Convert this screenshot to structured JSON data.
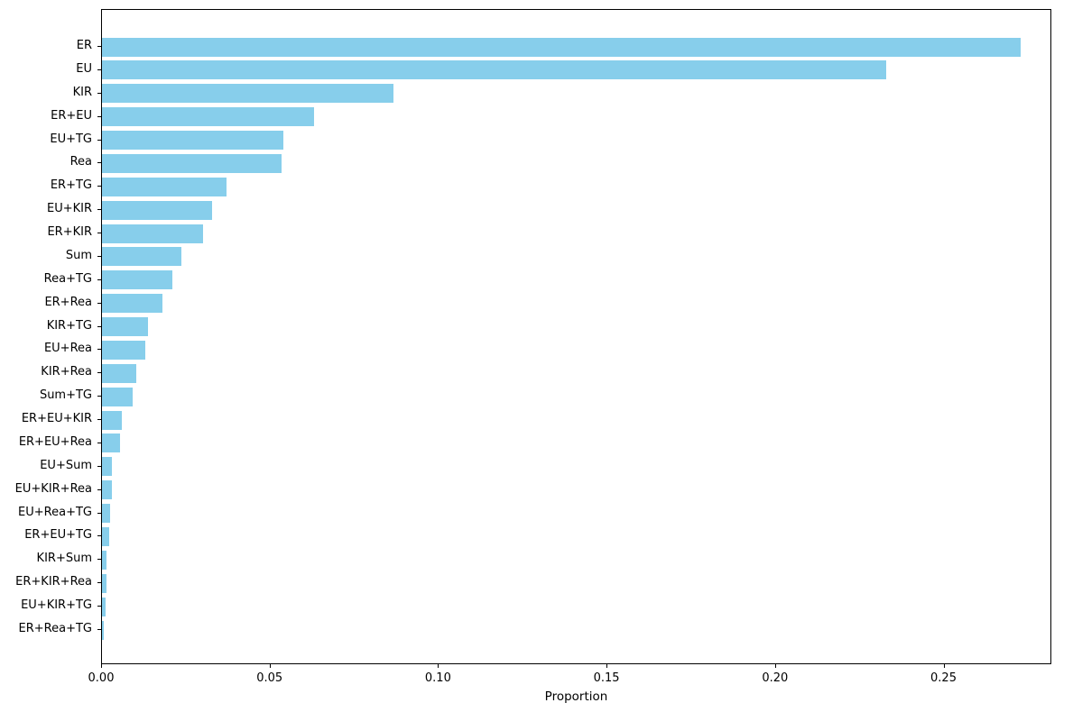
{
  "chart_data": {
    "type": "bar",
    "orientation": "horizontal",
    "title": "",
    "xlabel": "Proportion",
    "ylabel": "",
    "grid": false,
    "legend": null,
    "bar_color": "#87CEEB",
    "xlim": [
      0,
      0.282
    ],
    "xticks": [
      0,
      0.05,
      0.1,
      0.15,
      0.2,
      0.25
    ],
    "categories": [
      "ER",
      "EU",
      "KIR",
      "ER+EU",
      "EU+TG",
      "Rea",
      "ER+TG",
      "EU+KIR",
      "ER+KIR",
      "Sum",
      "Rea+TG",
      "ER+Rea",
      "KIR+TG",
      "EU+Rea",
      "KIR+Rea",
      "Sum+TG",
      "ER+EU+KIR",
      "ER+EU+Rea",
      "EU+Sum",
      "EU+KIR+Rea",
      "EU+Rea+TG",
      "ER+EU+TG",
      "KIR+Sum",
      "ER+KIR+Rea",
      "EU+KIR+TG",
      "ER+Rea+TG"
    ],
    "values": [
      0.2725,
      0.2327,
      0.0866,
      0.0629,
      0.0539,
      0.0533,
      0.037,
      0.0327,
      0.03,
      0.0236,
      0.0209,
      0.018,
      0.0136,
      0.0129,
      0.0102,
      0.0092,
      0.0059,
      0.0053,
      0.003,
      0.0029,
      0.0024,
      0.0022,
      0.0014,
      0.0013,
      0.0012,
      0.0006
    ]
  }
}
